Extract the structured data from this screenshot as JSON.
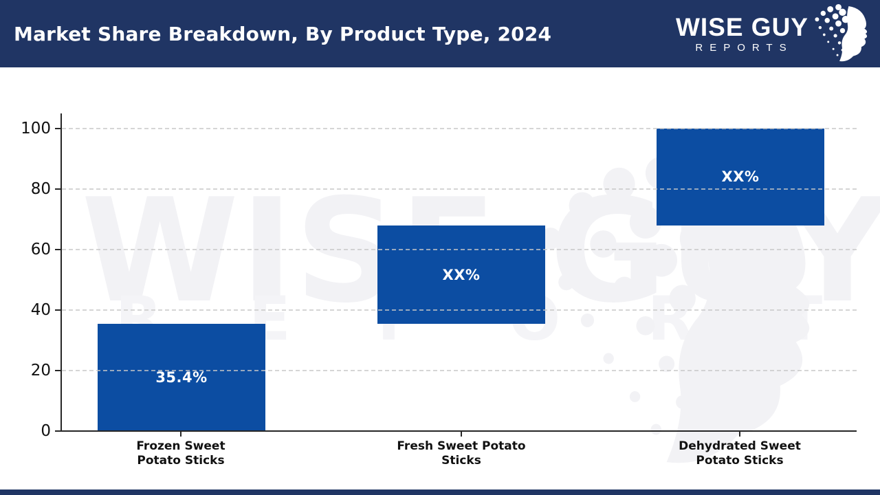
{
  "header": {
    "title": "Market Share Breakdown, By Product Type, 2024",
    "logo": {
      "line1": "WISE GUY",
      "line2": "REPORTS"
    }
  },
  "watermark": {
    "line1": "WISE GUY",
    "line2": "R E P O R T S"
  },
  "chart_data": {
    "type": "bar",
    "subtype": "waterfall",
    "title": "Market Share Breakdown, By Product Type, 2024",
    "categories": [
      [
        "Frozen Sweet",
        "Potato Sticks"
      ],
      [
        "Fresh Sweet Potato",
        "Sticks"
      ],
      [
        "Dehydrated Sweet",
        "Potato Sticks"
      ]
    ],
    "segments": [
      {
        "start": 0,
        "end": 35.4,
        "label": "35.4%"
      },
      {
        "start": 35.4,
        "end": 68,
        "label": "XX%"
      },
      {
        "start": 68,
        "end": 100,
        "label": "XX%"
      }
    ],
    "ylim": [
      0,
      100
    ],
    "yticks": [
      0,
      20,
      40,
      60,
      80,
      100
    ],
    "xlabel": "",
    "ylabel": "",
    "grid": "horizontal-dashed",
    "legend": "none",
    "bar_color": "#0c4da2",
    "bar_label_color": "#ffffff"
  },
  "colors": {
    "header_bg": "#203564",
    "footer_bg": "#203564",
    "bar": "#0c4da2",
    "axis": "#262626",
    "gridline": "#c8c8c8",
    "watermark": "#f2f2f5"
  }
}
